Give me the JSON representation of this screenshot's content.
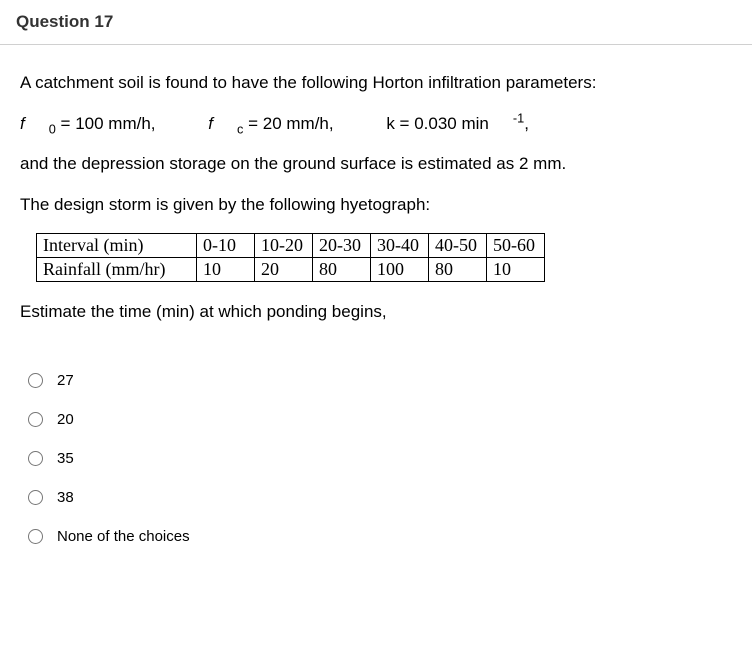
{
  "question": {
    "number_label": "Question 17",
    "intro": "A catchment soil is found to have the following Horton infiltration parameters:",
    "params": {
      "f0_sym": "f",
      "f0_sub": "0",
      "f0_val": " = 100 mm/h,",
      "fc_sym": "f",
      "fc_sub": "c",
      "fc_val": " = 20 mm/h,",
      "k_val": "k = 0.030 min",
      "k_sup": "-1",
      "k_tail": ","
    },
    "depression": "and the depression storage on the ground surface is estimated as 2 mm.",
    "storm_intro": "The design storm is given by the following hyetograph:",
    "table": {
      "row1_label": "Interval (min)",
      "row1": [
        "0-10",
        "10-20",
        "20-30",
        "30-40",
        "40-50",
        "50-60"
      ],
      "row2_label": "Rainfall (mm/hr)",
      "row2": [
        "10",
        "20",
        "80",
        "100",
        "80",
        "10"
      ]
    },
    "prompt": "Estimate the time (min) at which ponding begins,",
    "options": [
      "27",
      "20",
      "35",
      "38",
      "None of the choices"
    ]
  },
  "style": {
    "border_color": "#000000",
    "radio_border": "#777777",
    "text_color": "#000000",
    "header_border": "#d0d0d0"
  }
}
